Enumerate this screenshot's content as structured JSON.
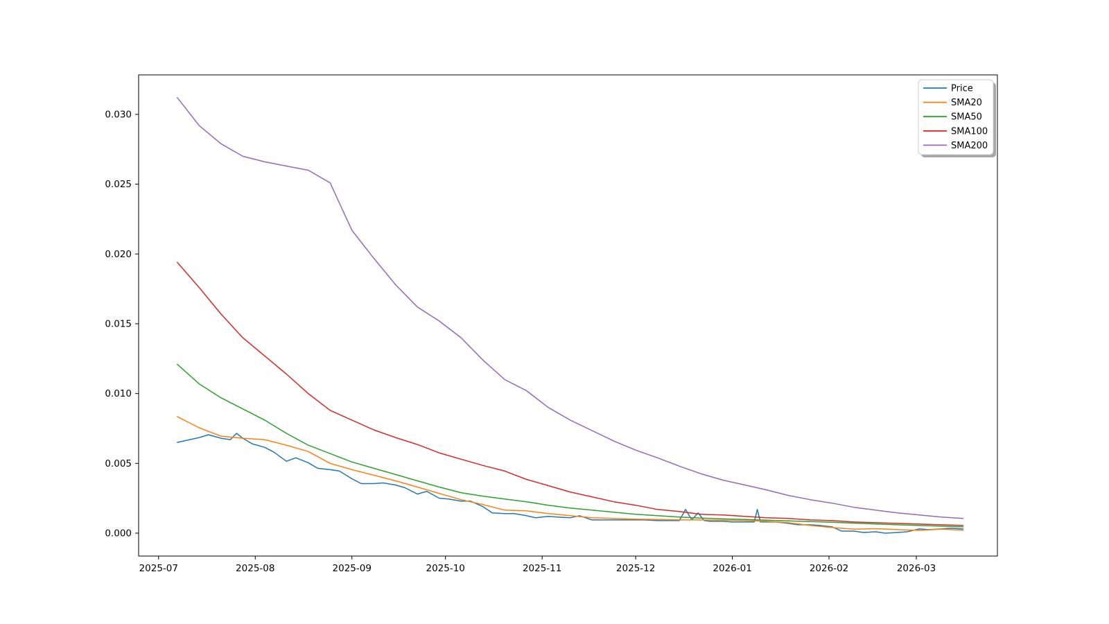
{
  "figure": {
    "background": "#ffffff",
    "plot_background": "#ffffff",
    "frame_color": "#000000",
    "tick_label_color": "#000000"
  },
  "legend": {
    "position": "upper-right",
    "box_fill": "#ffffff",
    "box_border": "#cccccc",
    "shadow_color": "rgba(0,0,0,0.35)"
  },
  "chart_data": {
    "type": "line",
    "title": "",
    "xlabel": "",
    "ylabel": "",
    "grid": false,
    "legend_position": "upper right",
    "x_axis": {
      "unit": "days since 2025-07-01",
      "tick_positions_days": [
        0,
        31,
        62,
        92,
        123,
        153,
        184,
        215,
        243
      ],
      "tick_labels": [
        "2025-07",
        "2025-08",
        "2025-09",
        "2025-10",
        "2025-11",
        "2025-12",
        "2026-01",
        "2026-02",
        "2026-03"
      ],
      "range_days": [
        -6.4,
        269.0
      ]
    },
    "y_axis": {
      "tick_values": [
        0.0,
        0.005,
        0.01,
        0.015,
        0.02,
        0.025,
        0.03
      ],
      "tick_labels": [
        "0.000",
        "0.005",
        "0.010",
        "0.015",
        "0.020",
        "0.025",
        "0.030"
      ],
      "range": [
        -0.00164,
        0.03283
      ]
    },
    "series": [
      {
        "name": "Price",
        "color": "#1f77b4",
        "x": [
          6,
          9,
          13,
          16,
          20,
          23,
          25,
          27,
          30,
          34,
          37,
          41,
          44,
          48,
          51,
          55,
          58,
          62,
          65,
          69,
          72,
          76,
          79,
          83,
          86,
          90,
          93,
          97,
          100,
          104,
          107,
          111,
          114,
          118,
          121,
          125,
          128,
          132,
          135,
          139,
          142,
          146,
          149,
          153,
          156,
          160,
          163,
          167,
          169,
          171,
          173,
          175,
          177,
          181,
          184,
          188,
          191,
          192,
          193,
          195,
          198,
          202,
          205,
          209,
          212,
          216,
          219,
          223,
          226,
          230,
          233,
          237,
          240,
          244,
          247,
          251,
          254,
          258
        ],
        "values": [
          0.0065,
          0.00665,
          0.00685,
          0.00705,
          0.0068,
          0.0067,
          0.00715,
          0.0068,
          0.0064,
          0.00615,
          0.0058,
          0.00515,
          0.0054,
          0.00505,
          0.00465,
          0.00455,
          0.00445,
          0.0039,
          0.00355,
          0.00355,
          0.0036,
          0.00345,
          0.00325,
          0.0028,
          0.003,
          0.0025,
          0.00245,
          0.0023,
          0.0023,
          0.0019,
          0.00145,
          0.0014,
          0.0014,
          0.00125,
          0.0011,
          0.0012,
          0.00115,
          0.0011,
          0.00125,
          0.00095,
          0.00095,
          0.00095,
          0.00095,
          0.00095,
          0.00095,
          0.0009,
          0.0009,
          0.0009,
          0.0017,
          0.00095,
          0.00145,
          0.0009,
          0.00085,
          0.00085,
          0.0008,
          0.0008,
          0.0008,
          0.0017,
          0.0008,
          0.0008,
          0.0008,
          0.0007,
          0.0006,
          0.0006,
          0.00055,
          0.00045,
          0.00015,
          0.00015,
          5e-05,
          0.0001,
          0.0,
          5e-05,
          0.0001,
          0.0003,
          0.00025,
          0.0003,
          0.00035,
          0.0003
        ]
      },
      {
        "name": "SMA20",
        "color": "#ff7f0e",
        "x_start": 6,
        "x_step": 7,
        "values": [
          0.00835,
          0.00755,
          0.00695,
          0.0068,
          0.0067,
          0.0063,
          0.00585,
          0.005,
          0.00455,
          0.00415,
          0.00375,
          0.0033,
          0.00285,
          0.0024,
          0.00205,
          0.00165,
          0.0016,
          0.0014,
          0.00125,
          0.0011,
          0.00105,
          0.001,
          0.00098,
          0.00095,
          0.00095,
          0.00093,
          0.0009,
          0.00085,
          0.00075,
          0.00055,
          0.0004,
          0.00028,
          0.00032,
          0.00025,
          0.0002,
          0.00028,
          0.00022
        ]
      },
      {
        "name": "SMA50",
        "color": "#2ca02c",
        "x_start": 6,
        "x_step": 7,
        "values": [
          0.0121,
          0.0107,
          0.0097,
          0.0089,
          0.0081,
          0.00715,
          0.0063,
          0.0057,
          0.0051,
          0.00465,
          0.0042,
          0.00375,
          0.0033,
          0.0029,
          0.00265,
          0.00245,
          0.00225,
          0.002,
          0.0018,
          0.00165,
          0.0015,
          0.00135,
          0.00125,
          0.00115,
          0.00108,
          0.00102,
          0.00098,
          0.00093,
          0.00088,
          0.00083,
          0.00078,
          0.00072,
          0.00066,
          0.0006,
          0.00055,
          0.0005,
          0.00045
        ]
      },
      {
        "name": "SMA100",
        "color": "#d62728",
        "x_start": 6,
        "x_step": 7,
        "values": [
          0.0194,
          0.0176,
          0.0157,
          0.014,
          0.0127,
          0.0114,
          0.01,
          0.0088,
          0.0081,
          0.0074,
          0.00685,
          0.00635,
          0.00575,
          0.0053,
          0.00485,
          0.00445,
          0.00385,
          0.0034,
          0.00295,
          0.0026,
          0.00225,
          0.002,
          0.0017,
          0.00155,
          0.00135,
          0.0013,
          0.0012,
          0.0011,
          0.00105,
          0.00095,
          0.0009,
          0.0008,
          0.00075,
          0.0007,
          0.00065,
          0.0006,
          0.00055
        ]
      },
      {
        "name": "SMA200",
        "color": "#9467bd",
        "x_start": 6,
        "x_step": 7,
        "values": [
          0.0312,
          0.0292,
          0.0279,
          0.027,
          0.0266,
          0.0263,
          0.026,
          0.0251,
          0.0217,
          0.0197,
          0.0178,
          0.0162,
          0.0152,
          0.014,
          0.0124,
          0.011,
          0.0102,
          0.009,
          0.0081,
          0.00735,
          0.0066,
          0.00595,
          0.0054,
          0.0048,
          0.00425,
          0.0038,
          0.00345,
          0.0031,
          0.0027,
          0.0024,
          0.00215,
          0.00185,
          0.00165,
          0.00145,
          0.0013,
          0.00115,
          0.00105
        ]
      }
    ]
  }
}
